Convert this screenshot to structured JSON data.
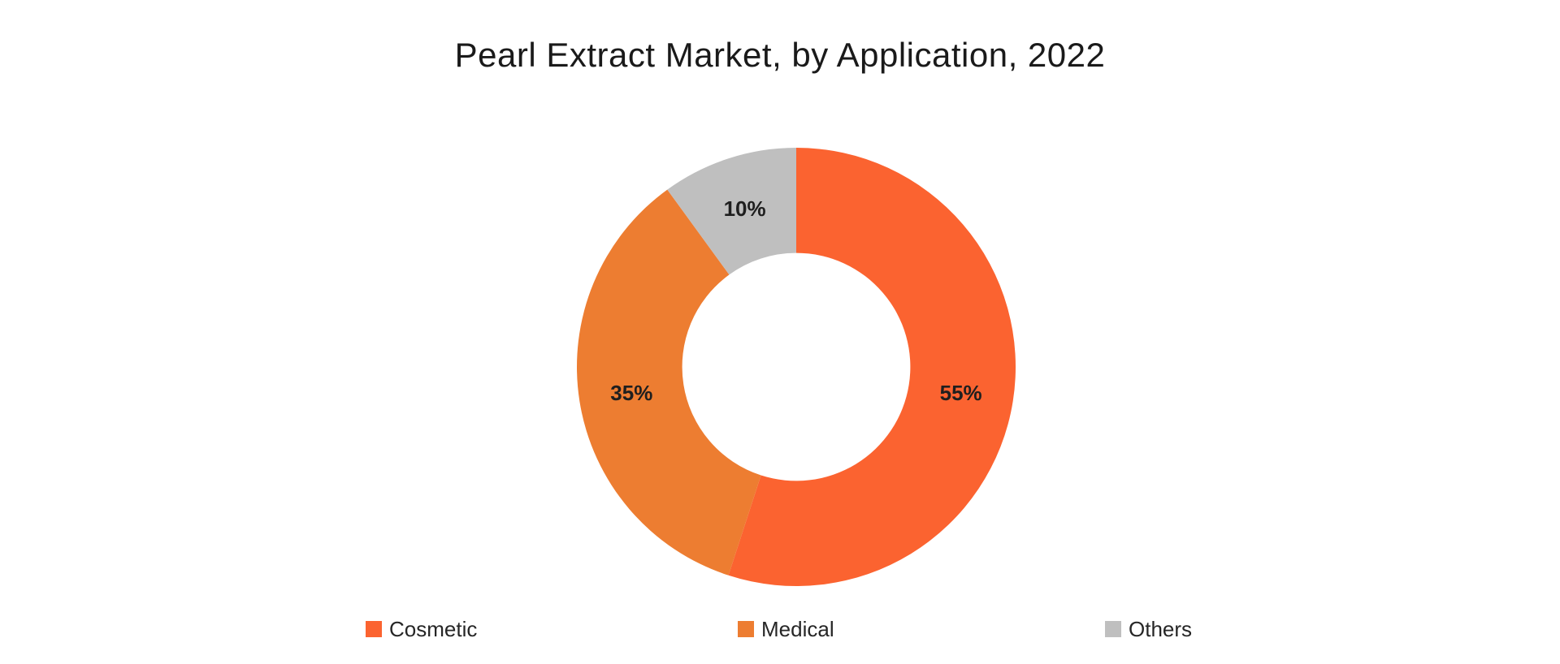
{
  "chart_data": {
    "type": "pie",
    "subtype": "donut",
    "title": "Pearl Extract Market, by Application, 2022",
    "slices": [
      {
        "label": "Cosmetic",
        "value": 55,
        "display": "55%",
        "color": "#FB6330"
      },
      {
        "label": "Medical",
        "value": 35,
        "display": "35%",
        "color": "#ED7D31"
      },
      {
        "label": "Others",
        "value": 10,
        "display": "10%",
        "color": "#BFBFBF"
      }
    ],
    "start_angle_deg": 0,
    "direction": "clockwise",
    "inner_radius_ratio": 0.52,
    "label_color": "#1f1f1f",
    "label_font_size": 26,
    "legend_position": "bottom",
    "background": "#ffffff"
  }
}
